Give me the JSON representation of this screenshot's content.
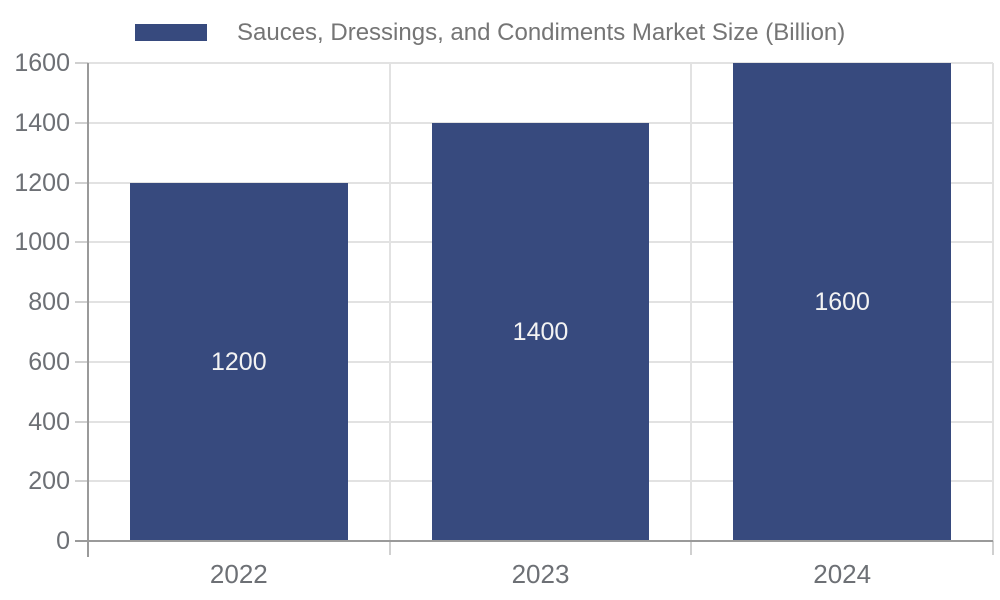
{
  "chart_data": {
    "type": "bar",
    "title": "Sauces, Dressings, and Condiments Market Size (Billion)",
    "categories": [
      "2022",
      "2023",
      "2024"
    ],
    "series": [
      {
        "name": "Sauces, Dressings, and Condiments Market Size (Billion)",
        "values": [
          1200,
          1400,
          1600
        ]
      }
    ],
    "bar_value_labels": [
      "1200",
      "1400",
      "1600"
    ],
    "ylim": [
      0,
      1600
    ],
    "ytick_step": 200,
    "ytick_labels": [
      "0",
      "200",
      "400",
      "600",
      "800",
      "1000",
      "1200",
      "1400",
      "1600"
    ],
    "xlabel": "",
    "ylabel": "",
    "grid": true,
    "legend_position": "top-left",
    "colors": {
      "bar": "#374A7E",
      "grid": "#e2e2e2",
      "axis": "#9a9a9a",
      "tick": "#d0d0d0",
      "axis_label": "#6d7075",
      "legend_text": "#757575",
      "value_label": "#f3f3f3"
    }
  }
}
